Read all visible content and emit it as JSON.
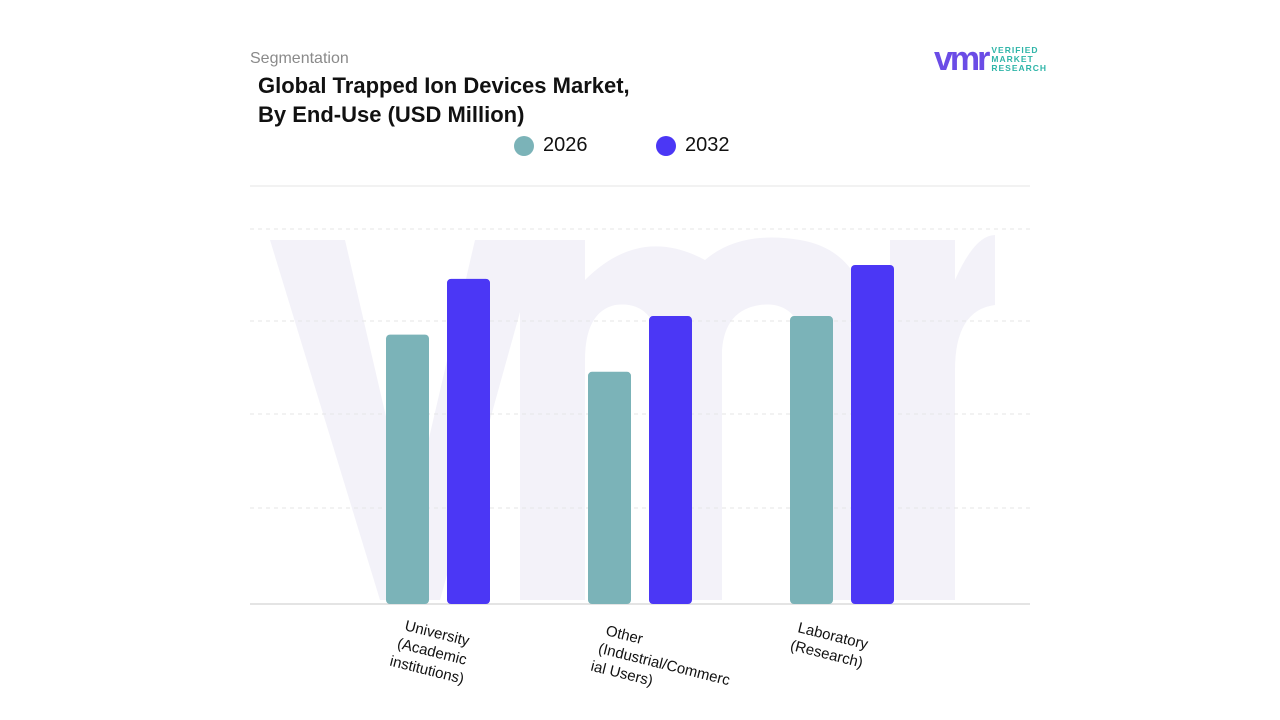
{
  "header": {
    "segment_label": "Segmentation",
    "title_line1": "Global Trapped Ion Devices Market,",
    "title_line2": "By End-Use (USD Million)"
  },
  "logo": {
    "mark": "vmr",
    "line1": "VERIFIED",
    "line2": "MARKET",
    "line3": "RESEARCH",
    "brand_color": "#6b4ce6",
    "accent_color": "#2fb5a8"
  },
  "chart_data": {
    "type": "bar",
    "categories": [
      [
        "University",
        "(Academic",
        "institutions)"
      ],
      [
        "Other",
        "(Industrial/Commerc",
        "ial Users)"
      ],
      [
        "Laboratory",
        "(Research)"
      ]
    ],
    "series": [
      {
        "name": "2026",
        "color": "#7bb3b8",
        "values": [
          58,
          50,
          62
        ]
      },
      {
        "name": "2032",
        "color": "#4b37f5",
        "values": [
          70,
          62,
          73
        ]
      }
    ],
    "ylim": [
      0,
      90
    ],
    "grid": true,
    "legend": "top-center"
  }
}
